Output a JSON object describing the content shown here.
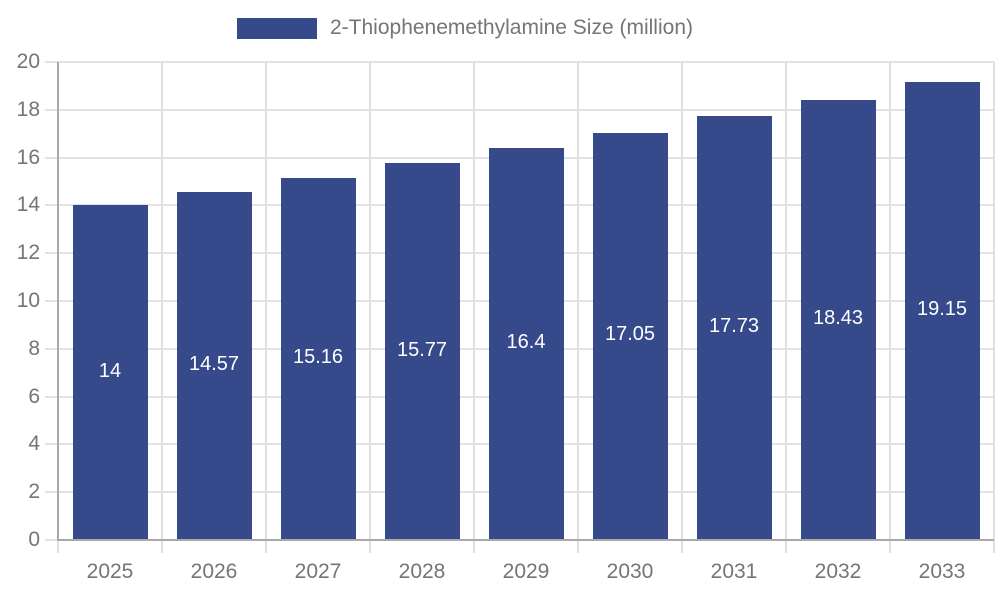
{
  "legend": {
    "label": "2-Thiophenemethylamine Size (million)"
  },
  "colors": {
    "bar": "#36498B",
    "value_label": "#ffffff",
    "axis_text": "#757575",
    "grid": "#e2e2e6",
    "axis_line": "#a9a9a9",
    "background": "#ffffff"
  },
  "chart_data": {
    "type": "bar",
    "title": "2-Thiophenemethylamine Size (million)",
    "legend_entries": [
      "2-Thiophenemethylamine Size (million)"
    ],
    "legend_position": "top",
    "categories": [
      "2025",
      "2026",
      "2027",
      "2028",
      "2029",
      "2030",
      "2031",
      "2032",
      "2033"
    ],
    "values": [
      14,
      14.57,
      15.16,
      15.77,
      16.4,
      17.05,
      17.73,
      18.43,
      19.15
    ],
    "value_labels": [
      "14",
      "14.57",
      "15.16",
      "15.77",
      "16.4",
      "17.05",
      "17.73",
      "18.43",
      "19.15"
    ],
    "xlabel": "",
    "ylabel": "",
    "ylim": [
      0,
      20
    ],
    "ytick_step": 2,
    "yticks": [
      0,
      2,
      4,
      6,
      8,
      10,
      12,
      14,
      16,
      18,
      20
    ],
    "grid": true,
    "bar_color": "#36498B"
  }
}
